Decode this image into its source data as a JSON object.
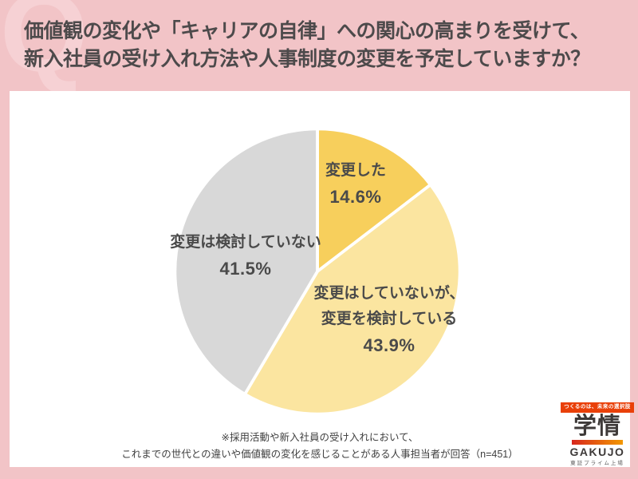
{
  "page": {
    "background_color": "#f2c4c7",
    "watermark_letter": "Q"
  },
  "header": {
    "title_line1": "価値観の変化や「キャリアの自律」への関心の高まりを受けて、",
    "title_line2": "新入社員の受け入れ方法や人事制度の変更を予定していますか？"
  },
  "chart_data": {
    "type": "pie",
    "title": "価値観の変化や「キャリアの自律」への関心の高まりを受けて、新入社員の受け入れ方法や人事制度の変更を予定していますか？",
    "unit": "%",
    "start_angle_deg": 0,
    "direction": "clockwise",
    "slice_border_color": "#ffffff",
    "labels_inside": true,
    "slices": [
      {
        "label": "変更した",
        "value": 14.6,
        "color": "#f7cf5c"
      },
      {
        "label": "変更はしていないが、変更を検討している",
        "value": 43.9,
        "color": "#fbe5a0"
      },
      {
        "label": "変更は検討していない",
        "value": 41.5,
        "color": "#d8d8d8"
      }
    ]
  },
  "pie_labels": {
    "changed": {
      "line1": "変更した",
      "pct": "14.6%"
    },
    "considering": {
      "line1": "変更はしていないが、",
      "line2": "変更を検討している",
      "pct": "43.9%"
    },
    "not_considering": {
      "line1": "変更は検討していない",
      "pct": "41.5%"
    }
  },
  "footnote": {
    "line1": "※採用活動や新入社員の受け入れにおいて、",
    "line2": "これまでの世代との違いや価値観の変化を感じることがある人事担当者が回答（n=451）"
  },
  "logo": {
    "tagline": "つくるのは、未来の選択肢",
    "tagline_bg": "#e94009",
    "brand_kanji": "学情",
    "brand_roman": "GAKUJO",
    "listing": "東証プライム上場",
    "bar_gradient_from": "#d7261d",
    "bar_gradient_to": "#f39800"
  }
}
